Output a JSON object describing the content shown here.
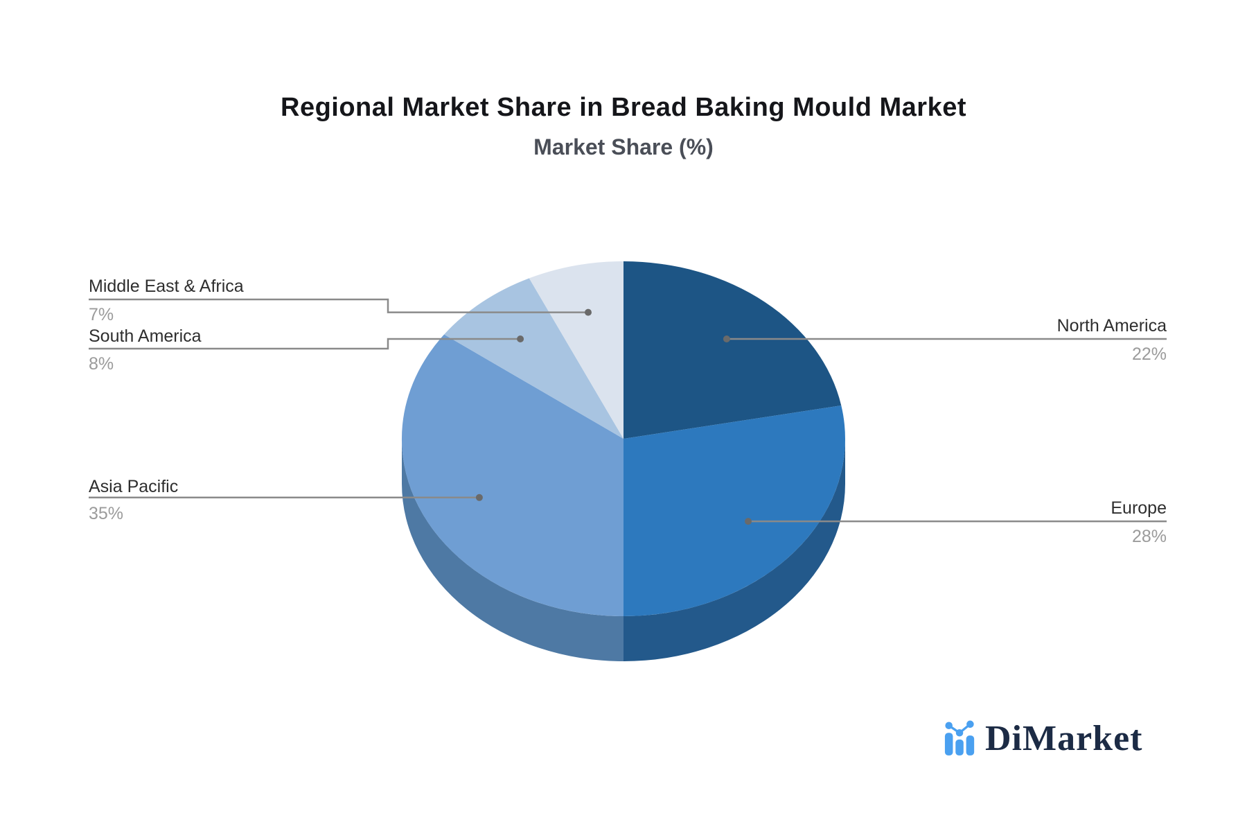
{
  "title": "Regional Market Share in Bread Baking Mould Market",
  "subtitle": "Market Share (%)",
  "brand": {
    "name": "DiMarket",
    "text_color": "#1c2b45",
    "icon": "bar-line-chart-logo-icon",
    "icon_color": "#4aa0f0"
  },
  "chart_data": {
    "type": "pie",
    "style": "3d",
    "title": "Regional Market Share in Bread Baking Mould Market",
    "subtitle": "Market Share (%)",
    "unit": "%",
    "start_angle_deg": 0,
    "direction": "clockwise",
    "legend_position": "none",
    "callout_line_color": "#8a8a8a",
    "callout_dot_color": "#6a6a6a",
    "label_color": "#2e2e2e",
    "value_color": "#9b9b9b",
    "segments": [
      {
        "label": "North America",
        "value": 22,
        "display": "22%",
        "color": "#1d5585",
        "callout_side": "right"
      },
      {
        "label": "Europe",
        "value": 28,
        "display": "28%",
        "color": "#2d79be",
        "side_color": "#23598b",
        "callout_side": "right"
      },
      {
        "label": "Asia Pacific",
        "value": 35,
        "display": "35%",
        "color": "#6f9ed3",
        "side_color": "#4e79a4",
        "callout_side": "left"
      },
      {
        "label": "South America",
        "value": 8,
        "display": "8%",
        "color": "#a8c4e1",
        "callout_side": "left"
      },
      {
        "label": "Middle East & Africa",
        "value": 7,
        "display": "7%",
        "color": "#dbe3ee",
        "callout_side": "left"
      }
    ]
  }
}
